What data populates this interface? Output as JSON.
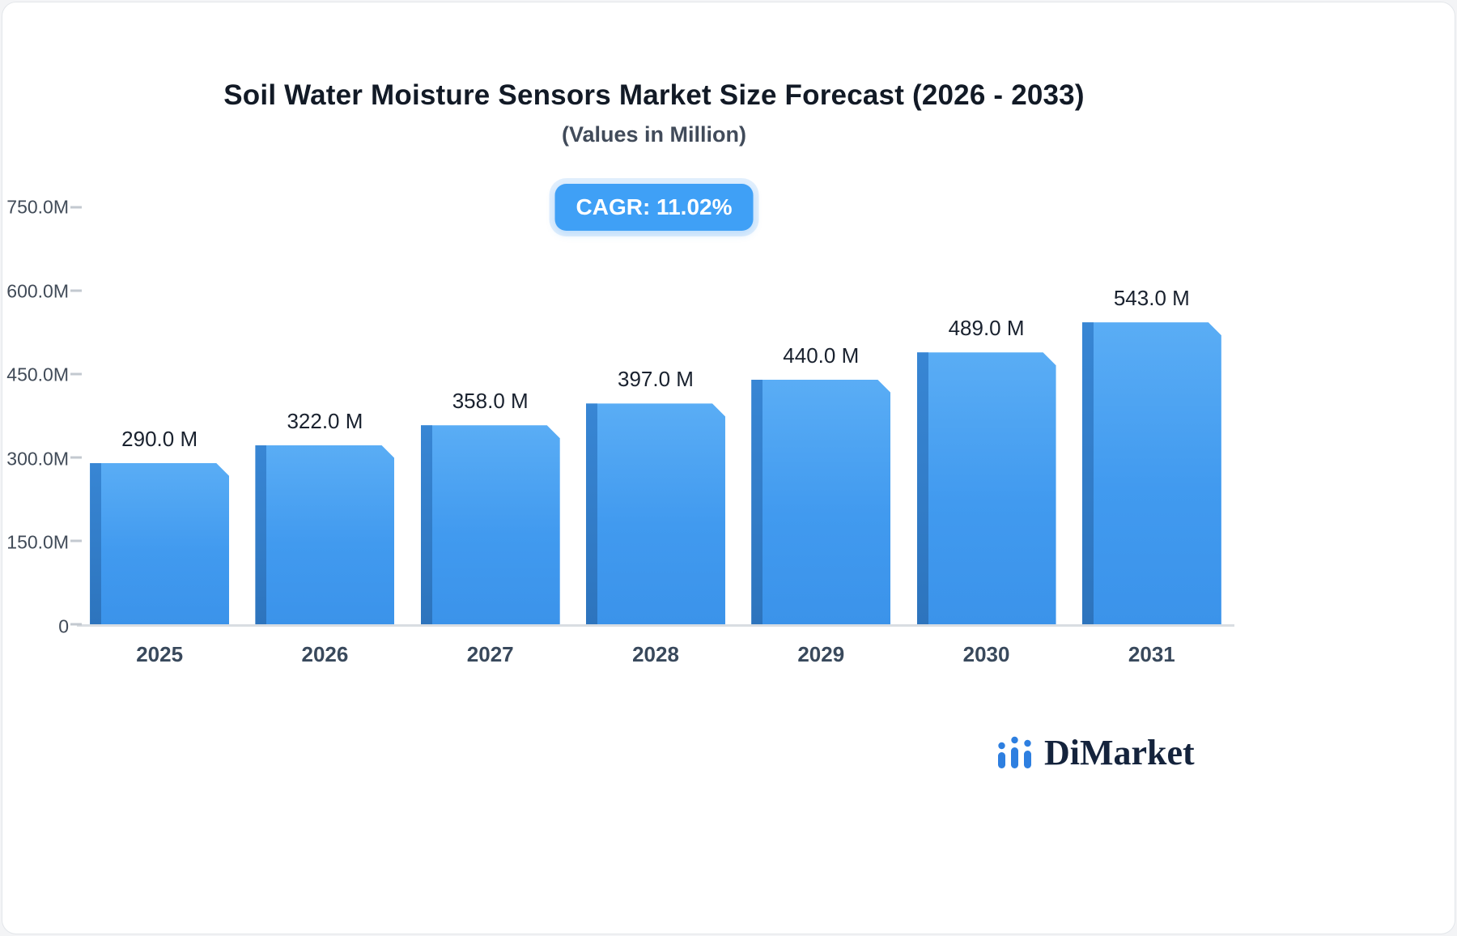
{
  "title": "Soil Water Moisture Sensors Market Size Forecast (2026 - 2033)",
  "subtitle": "(Values in Million)",
  "badge": {
    "label": "CAGR: 11.02%"
  },
  "brand": {
    "name": "DiMarket"
  },
  "colors": {
    "bar_face": "#419aef",
    "bar_edge": "#2d74bd",
    "badge_bg": "#3fa0f6",
    "axis_text": "#414b58",
    "brand_blue": "#2e7fe0"
  },
  "chart_data": {
    "type": "bar",
    "title": "Soil Water Moisture Sensors Market Size Forecast (2026 - 2033)",
    "subtitle": "(Values in Million)",
    "categories": [
      "2025",
      "2026",
      "2027",
      "2028",
      "2029",
      "2030",
      "2031"
    ],
    "values": [
      290,
      322,
      358,
      397,
      440,
      489,
      543
    ],
    "value_labels": [
      "290.0 M",
      "322.0 M",
      "358.0 M",
      "397.0 M",
      "440.0 M",
      "489.0 M",
      "543.0 M"
    ],
    "xlabel": "",
    "ylabel": "",
    "ylim": [
      0,
      750
    ],
    "yticks": [
      0,
      150,
      300,
      450,
      600,
      750
    ],
    "ytick_labels": [
      "0",
      "150.0M",
      "300.0M",
      "450.0M",
      "600.0M",
      "750.0M"
    ],
    "grid": false,
    "legend": false
  }
}
